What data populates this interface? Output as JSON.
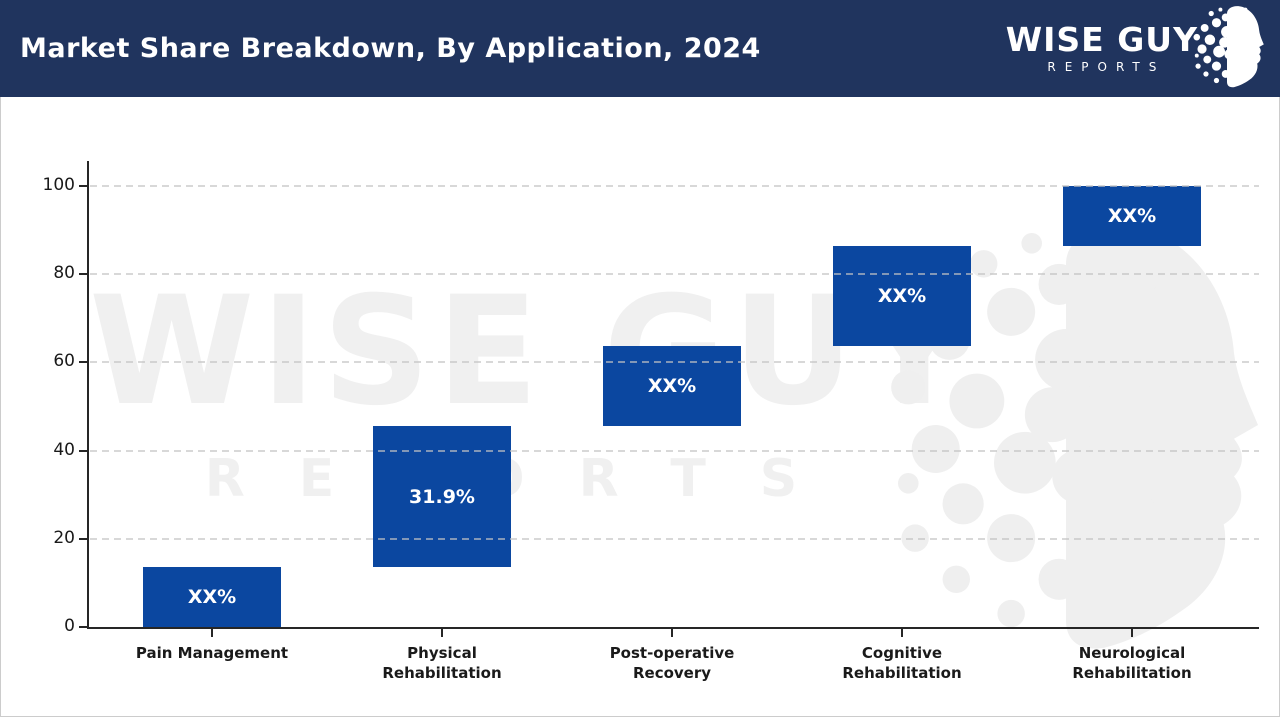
{
  "header": {
    "title": "Market Share Breakdown, By Application, 2024",
    "bg_color": "#20345e",
    "logo": {
      "line1": "WISE GUY",
      "line2": "REPORTS"
    }
  },
  "watermark": {
    "line1": "WISE GUY",
    "line2": "REPORTS",
    "color": "#f0f0f0"
  },
  "chart_data": {
    "type": "bar",
    "subtype": "waterfall",
    "title": "Market Share Breakdown, By Application, 2024",
    "xlabel": "",
    "ylabel": "",
    "ylim": [
      0,
      100
    ],
    "yticks": [
      0,
      20,
      40,
      60,
      80,
      100
    ],
    "grid": "horizontal-dashed-over-bars",
    "legend": "none",
    "bar_color": "#0b47a0",
    "bar_label_color": "#ffffff",
    "axis_color": "#262626",
    "grid_color": "#d6d6d6",
    "categories": [
      "Pain Management",
      "Physical\nRehabilitation",
      "Post-operative\nRecovery",
      "Cognitive\nRehabilitation",
      "Neurological\nRehabilitation"
    ],
    "segments": [
      {
        "category": "Pain Management",
        "start": 0,
        "end": 13.6,
        "value_shown": "XX%"
      },
      {
        "category": "Physical Rehabilitation",
        "start": 13.6,
        "end": 45.5,
        "value_shown": "31.9%"
      },
      {
        "category": "Post-operative Recovery",
        "start": 45.5,
        "end": 63.7,
        "value_shown": "XX%"
      },
      {
        "category": "Cognitive Rehabilitation",
        "start": 63.7,
        "end": 86.4,
        "value_shown": "XX%"
      },
      {
        "category": "Neurological Rehabilitation",
        "start": 86.4,
        "end": 100,
        "value_shown": "XX%"
      }
    ]
  }
}
